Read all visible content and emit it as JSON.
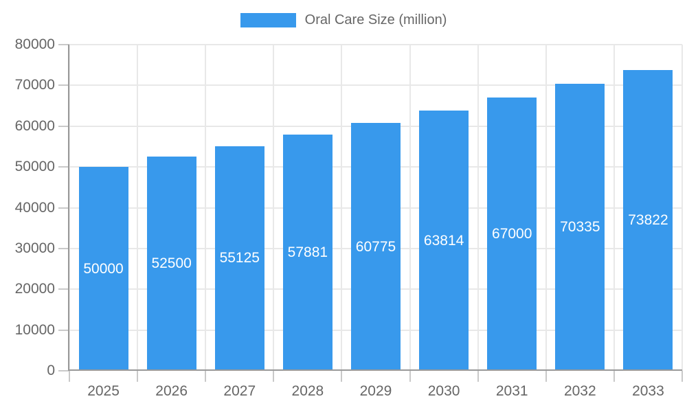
{
  "chart_data": {
    "type": "bar",
    "title": "",
    "legend": "Oral Care Size (million)",
    "legend_position": "top",
    "categories": [
      "2025",
      "2026",
      "2027",
      "2028",
      "2029",
      "2030",
      "2031",
      "2032",
      "2033"
    ],
    "series": [
      {
        "name": "Oral Care Size (million)",
        "values": [
          50000,
          52500,
          55125,
          57881,
          60775,
          63814,
          67000,
          70335,
          73822
        ]
      }
    ],
    "value_labels": [
      "50000",
      "52500",
      "55125",
      "57881",
      "60775",
      "63814",
      "67000",
      "70335",
      "73822"
    ],
    "xlabel": "",
    "ylabel": "",
    "ylim": [
      0,
      80000
    ],
    "yticks": [
      0,
      10000,
      20000,
      30000,
      40000,
      50000,
      60000,
      70000,
      80000
    ],
    "grid": "both",
    "colors": {
      "bar": "#3899ec",
      "grid": "#e8e8e8",
      "axis": "#999999",
      "tickmark": "#c9c9c9",
      "text": "#666666",
      "value_label": "#ffffff"
    }
  }
}
